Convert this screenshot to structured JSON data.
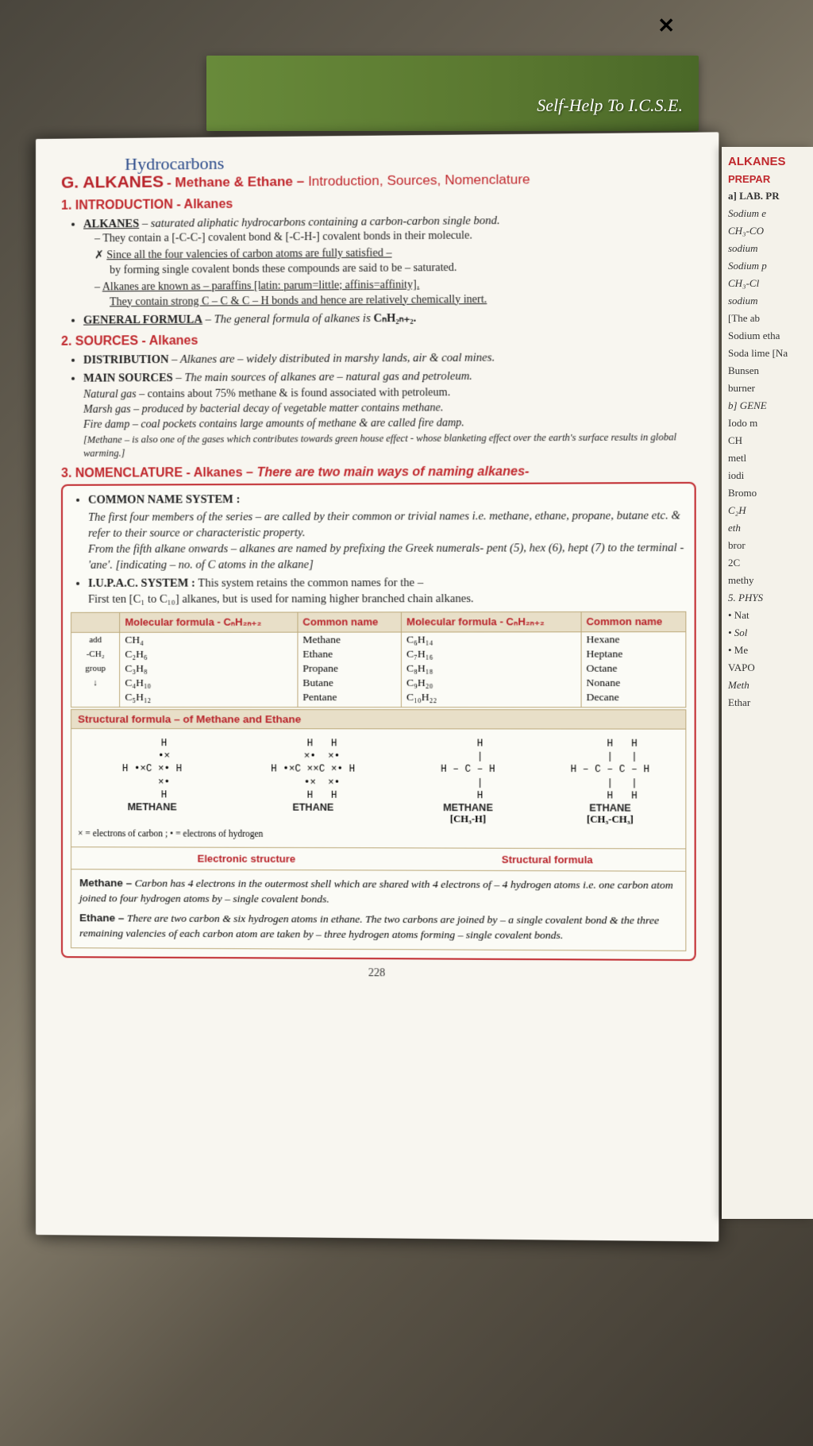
{
  "topbar": {
    "series": "Self-Help To I.C.S.E.",
    "x": "✕"
  },
  "handwritten": "Hydrocarbons",
  "title_prefix": "G. ALKANES",
  "title_mid": " - Methane & Ethane – ",
  "title_suffix": "Introduction, Sources, Nomenclature",
  "s1": {
    "head": "1. INTRODUCTION - Alkanes",
    "b1_lead": "ALKANES",
    "b1_rest": " – saturated aliphatic hydrocarbons containing a carbon-carbon single bond.",
    "d1": "They contain a [-C-C-] covalent bond & [-C-H-] covalent bonds in their molecule.",
    "d2a": "Since all the four valencies of carbon atoms are fully satisfied –",
    "d2b": "by forming single covalent bonds these compounds are said to be – saturated.",
    "d3a": "Alkanes are known as – paraffins [latin: parum=little; affinis=affinity].",
    "d3b": "They contain strong C – C & C – H bonds and hence are relatively chemically inert.",
    "b2_lead": "GENERAL FORMULA",
    "b2_rest": " – The general formula of alkanes is ",
    "b2_formula": "CₙH₂ₙ₊₂."
  },
  "s2": {
    "head": "2. SOURCES - Alkanes",
    "b1_lead": "DISTRIBUTION",
    "b1_rest": " – Alkanes are – widely distributed in marshy lands, air & coal mines.",
    "b2_lead": "MAIN SOURCES",
    "b2_rest": " – The main sources of alkanes are – natural gas and petroleum.",
    "l1a": "Natural gas",
    "l1b": " – contains about 75% methane & is found associated with petroleum.",
    "l2a": "Marsh gas",
    "l2b": " – produced by bacterial decay of vegetable matter contains methane.",
    "l3a": "Fire damp",
    "l3b": " – coal pockets contains large amounts of methane & are called fire damp.",
    "l4a": "[Methane",
    "l4b": " – is also one of the gases which contributes towards green house effect - whose blanketing effect over the earth's surface results in global warming.]"
  },
  "s3": {
    "head": "3. NOMENCLATURE - Alkanes – ",
    "head2": "There are two main ways of naming alkanes-",
    "c1_lead": "COMMON NAME SYSTEM :",
    "c1a": "The first four members of the series – are called by their common or trivial names i.e. methane, ethane, propane, butane etc. & refer to their source or characteristic property.",
    "c1b": "From the fifth alkane onwards – alkanes are named by prefixing the Greek numerals- pent (5), hex (6), hept (7) to the terminal - 'ane'. [indicating – no. of C atoms in the alkane]",
    "c2_lead": "I.U.P.A.C. SYSTEM :",
    "c2a": " This system retains the common names for the –",
    "c2b": "First ten [C₁ to C₁₀] alkanes, but is used for naming higher branched chain alkanes."
  },
  "table": {
    "h1": "Molecular formula - CₙH₂ₙ₊₂",
    "h2": "Common name",
    "h3": "Molecular formula - CₙH₂ₙ₊₂",
    "h4": "Common name",
    "side": [
      "add",
      "-CH₂",
      "group",
      "↓"
    ],
    "rows": [
      [
        "CH₄",
        "Methane",
        "C₆H₁₄",
        "Hexane"
      ],
      [
        "C₂H₆",
        "Ethane",
        "C₇H₁₆",
        "Heptane"
      ],
      [
        "C₃H₈",
        "Propane",
        "C₈H₁₈",
        "Octane"
      ],
      [
        "C₄H₁₀",
        "Butane",
        "C₉H₂₀",
        "Nonane"
      ],
      [
        "C₅H₁₂",
        "Pentane",
        "C₁₀H₂₂",
        "Decane"
      ]
    ]
  },
  "struct": {
    "head": "Structural formula – of Methane and Ethane",
    "m1": "    H\n    •×\nH •×C ×• H\n    ×•\n    H",
    "m1n": "METHANE",
    "m2": "   H   H\n   ×•  ×•\nH •×C ××C ×• H\n   •×  ×•\n   H   H",
    "m2n": "ETHANE",
    "m3": "    H\n    |\nH – C – H\n    |\n    H",
    "m3n": "METHANE",
    "m3f": "[CH₃-H]",
    "m4": "    H   H\n    |   |\nH – C – C – H\n    |   |\n    H   H",
    "m4n": "ETHANE",
    "m4f": "[CH₃-CH₃]",
    "legend": "× = electrons of carbon ; • = electrons of hydrogen",
    "f1": "Electronic structure",
    "f2": "Structural formula"
  },
  "desc": {
    "m_lead": "Methane –",
    "m_text": " Carbon has 4 electrons in the outermost shell which are shared with 4 electrons of – 4 hydrogen atoms i.e. one carbon atom joined to four hydrogen atoms by – single covalent bonds.",
    "e_lead": "Ethane  –",
    "e_text": " There are two carbon & six hydrogen atoms in ethane. The two carbons are joined by – a single covalent bond & the three remaining valencies of each carbon atom are taken by – three hydrogen atoms forming – single covalent bonds."
  },
  "pagenum": "228",
  "edge": {
    "t1": "ALKANES",
    "t2": "PREPAR",
    "t3": "a] LAB. PR",
    "items": [
      "Sodium e",
      "CH₃-CO",
      "sodium",
      "Sodium p",
      "CH₃-Cl",
      "sodium",
      "[The ab",
      "Sodium etha",
      "Soda lime [Na",
      "Bunsen",
      "burner",
      "b] GENE",
      "Iodo m",
      "CH",
      "metl",
      "iodi",
      "Bromo",
      "C₂H",
      "eth",
      "bror",
      "2C",
      "methy",
      "5. PHYS",
      "• Nat",
      "• Sol",
      "• Me",
      "VAPO",
      "Meth",
      "Ethar"
    ]
  },
  "colors": {
    "red": "#c0282d",
    "darkred": "#b8232a",
    "page": "#f8f6f0",
    "boxborder": "#bca97a",
    "boxhead": "#e8dfc8",
    "green": "#5a7830"
  }
}
